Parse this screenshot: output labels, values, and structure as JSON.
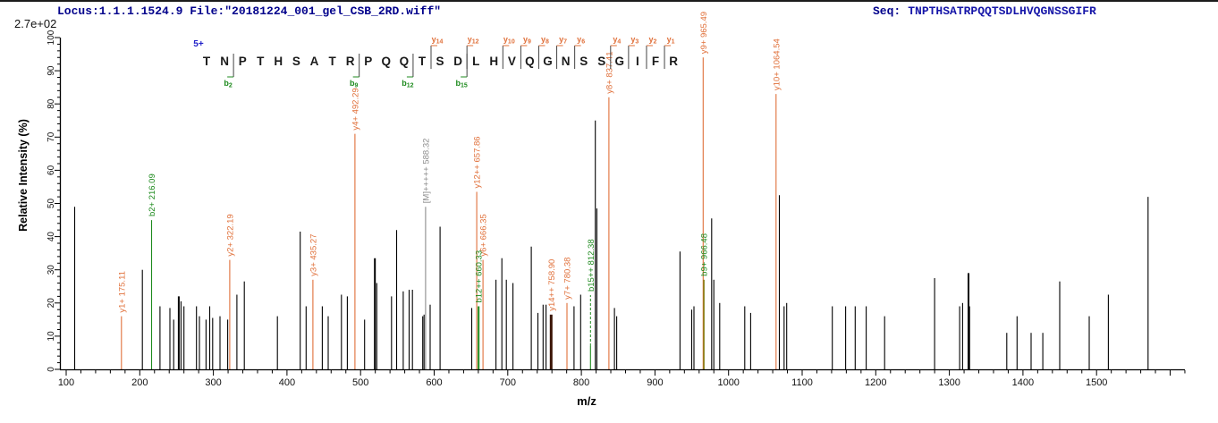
{
  "header": {
    "locus_file": "Locus:1.1.1.1524.9 File:\"20181224_001_gel_CSB_2RD.wiff\"",
    "seq_label": "Seq:",
    "seq_value": "TNPTHSATRPQQTSDLHVQGNSSGIFR",
    "max_intensity": "2.7e+02"
  },
  "colors": {
    "y_ion": "#e0703a",
    "b_ion": "#1d8a1d",
    "neutral": "#8c8c8c",
    "peak": "#000000",
    "axis": "#000000",
    "header_text": "#00008b",
    "charge": "#2020c8",
    "boundary_line": "#444444"
  },
  "chart_data": {
    "type": "bar",
    "subtype": "ms2-peptide-fragment-spectrum",
    "title": "",
    "xlabel": "m/z",
    "ylabel": "Relative  Intensity (%)",
    "y_scale_max_label": "2.7e+02",
    "xlim": [
      90,
      1625
    ],
    "ylim": [
      0,
      100
    ],
    "x_major_tick_step": 100,
    "x_minor_tick_step": 20,
    "x_labeled_ticks": [
      100,
      200,
      300,
      400,
      500,
      600,
      700,
      800,
      900,
      1000,
      1100,
      1200,
      1300,
      1400,
      1500
    ],
    "y_major_tick_step": 10,
    "y_minor_tick_step": 2,
    "grid": false,
    "precursor_charge": "5+",
    "sequence": "TNPTHSATRPQQTSDLHVQGNSSGIFR",
    "b_ion_cuts": [
      {
        "name": "b2",
        "cut_after": 2
      },
      {
        "name": "b9",
        "cut_after": 9
      },
      {
        "name": "b12",
        "cut_after": 12
      },
      {
        "name": "b15",
        "cut_after": 15
      }
    ],
    "y_ion_cuts": [
      {
        "name": "y14",
        "cut_after": 13
      },
      {
        "name": "y12",
        "cut_after": 15
      },
      {
        "name": "y10",
        "cut_after": 17
      },
      {
        "name": "y9",
        "cut_after": 18
      },
      {
        "name": "y8",
        "cut_after": 19
      },
      {
        "name": "y7",
        "cut_after": 20
      },
      {
        "name": "y6",
        "cut_after": 21
      },
      {
        "name": "y4",
        "cut_after": 23
      },
      {
        "name": "y3",
        "cut_after": 24
      },
      {
        "name": "y2",
        "cut_after": 25
      },
      {
        "name": "y1",
        "cut_after": 26
      }
    ],
    "peaks": [
      {
        "mz": 111.5,
        "i": 49
      },
      {
        "mz": 175.11,
        "i": 16,
        "ion": "y",
        "label": "y1+ 175.11"
      },
      {
        "mz": 203.5,
        "i": 30
      },
      {
        "mz": 216.09,
        "i": 45,
        "ion": "b",
        "label": "b2+ 216.09"
      },
      {
        "mz": 227.5,
        "i": 19
      },
      {
        "mz": 241,
        "i": 18.5
      },
      {
        "mz": 246,
        "i": 15
      },
      {
        "mz": 253,
        "i": 22,
        "w": 2
      },
      {
        "mz": 256,
        "i": 20.5
      },
      {
        "mz": 260,
        "i": 19
      },
      {
        "mz": 277,
        "i": 19
      },
      {
        "mz": 281,
        "i": 16
      },
      {
        "mz": 290,
        "i": 15
      },
      {
        "mz": 295,
        "i": 19
      },
      {
        "mz": 299,
        "i": 15.5
      },
      {
        "mz": 309,
        "i": 16
      },
      {
        "mz": 319.5,
        "i": 15
      },
      {
        "mz": 322.19,
        "i": 33,
        "ion": "y",
        "label": "y2+ 322.19"
      },
      {
        "mz": 332,
        "i": 22.5
      },
      {
        "mz": 342,
        "i": 26.5
      },
      {
        "mz": 387,
        "i": 16
      },
      {
        "mz": 418,
        "i": 41.5
      },
      {
        "mz": 426,
        "i": 19
      },
      {
        "mz": 435.27,
        "i": 27,
        "ion": "y",
        "label": "y3+ 435.27"
      },
      {
        "mz": 448,
        "i": 19
      },
      {
        "mz": 456,
        "i": 16
      },
      {
        "mz": 474,
        "i": 22.5
      },
      {
        "mz": 482,
        "i": 22
      },
      {
        "mz": 492.29,
        "i": 71,
        "ion": "y",
        "label": "y4+ 492.29"
      },
      {
        "mz": 505.5,
        "i": 15
      },
      {
        "mz": 519.5,
        "i": 33.5,
        "w": 2
      },
      {
        "mz": 522,
        "i": 26
      },
      {
        "mz": 542,
        "i": 22
      },
      {
        "mz": 549,
        "i": 42
      },
      {
        "mz": 558,
        "i": 23.5
      },
      {
        "mz": 566,
        "i": 24
      },
      {
        "mz": 570.5,
        "i": 24
      },
      {
        "mz": 584.5,
        "i": 16
      },
      {
        "mz": 586.3,
        "i": 16.5
      },
      {
        "mz": 588.32,
        "i": 49,
        "ion": "M",
        "label": "[M]+++++ 588.32"
      },
      {
        "mz": 594.5,
        "i": 19.5
      },
      {
        "mz": 608,
        "i": 43
      },
      {
        "mz": 651,
        "i": 18.5
      },
      {
        "mz": 657.86,
        "i": 53.5,
        "ion": "y",
        "label": "y12++ 657.86"
      },
      {
        "mz": 660.33,
        "i": 19,
        "ion": "b",
        "label": "b12++ 660.33",
        "w": 2
      },
      {
        "mz": 666.35,
        "i": 33,
        "ion": "y",
        "label": "y6+ 666.35"
      },
      {
        "mz": 684,
        "i": 27
      },
      {
        "mz": 692,
        "i": 33.5
      },
      {
        "mz": 698,
        "i": 27
      },
      {
        "mz": 707,
        "i": 26
      },
      {
        "mz": 732,
        "i": 37
      },
      {
        "mz": 741,
        "i": 17
      },
      {
        "mz": 748,
        "i": 19.5
      },
      {
        "mz": 752,
        "i": 19.5
      },
      {
        "mz": 758.9,
        "i": 16.5,
        "ion": "y",
        "label": "y14++ 758.90",
        "w": 3,
        "line": "#3a1505"
      },
      {
        "mz": 780.38,
        "i": 20,
        "ion": "y",
        "label": "y7+ 780.38"
      },
      {
        "mz": 790,
        "i": 19
      },
      {
        "mz": 799,
        "i": 22.5
      },
      {
        "mz": 812.38,
        "i": 7,
        "ion": "b",
        "label": "b15++ 812.38",
        "leader": 57
      },
      {
        "mz": 819,
        "i": 75
      },
      {
        "mz": 821,
        "i": 48.5
      },
      {
        "mz": 837.41,
        "i": 82,
        "ion": "y",
        "label": "y8+ 837.41"
      },
      {
        "mz": 845,
        "i": 18.5
      },
      {
        "mz": 848,
        "i": 16
      },
      {
        "mz": 934,
        "i": 35.5
      },
      {
        "mz": 950,
        "i": 18
      },
      {
        "mz": 953,
        "i": 19
      },
      {
        "mz": 965.49,
        "i": 94,
        "ion": "y",
        "label": "y9+ 965.49"
      },
      {
        "mz": 966.48,
        "i": 27,
        "ion": "b",
        "label": "b9+ 966.48",
        "line": "#7e7e10",
        "w": 1.5
      },
      {
        "mz": 977,
        "i": 45.5
      },
      {
        "mz": 980,
        "i": 27
      },
      {
        "mz": 988,
        "i": 20
      },
      {
        "mz": 1022,
        "i": 19
      },
      {
        "mz": 1030,
        "i": 17
      },
      {
        "mz": 1064.54,
        "i": 83,
        "ion": "y",
        "label": "y10+ 1064.54"
      },
      {
        "mz": 1069,
        "i": 52.5
      },
      {
        "mz": 1075.5,
        "i": 19
      },
      {
        "mz": 1079,
        "i": 20
      },
      {
        "mz": 1141,
        "i": 19
      },
      {
        "mz": 1159,
        "i": 19
      },
      {
        "mz": 1172,
        "i": 19
      },
      {
        "mz": 1187,
        "i": 19
      },
      {
        "mz": 1212,
        "i": 16
      },
      {
        "mz": 1280,
        "i": 27.5
      },
      {
        "mz": 1314,
        "i": 19
      },
      {
        "mz": 1318,
        "i": 20
      },
      {
        "mz": 1326,
        "i": 29,
        "w": 2
      },
      {
        "mz": 1327.5,
        "i": 19
      },
      {
        "mz": 1378,
        "i": 11
      },
      {
        "mz": 1392,
        "i": 16
      },
      {
        "mz": 1411,
        "i": 11
      },
      {
        "mz": 1427,
        "i": 11
      },
      {
        "mz": 1450,
        "i": 26.5
      },
      {
        "mz": 1490,
        "i": 16
      },
      {
        "mz": 1516,
        "i": 22.5
      },
      {
        "mz": 1570,
        "i": 52
      }
    ]
  }
}
